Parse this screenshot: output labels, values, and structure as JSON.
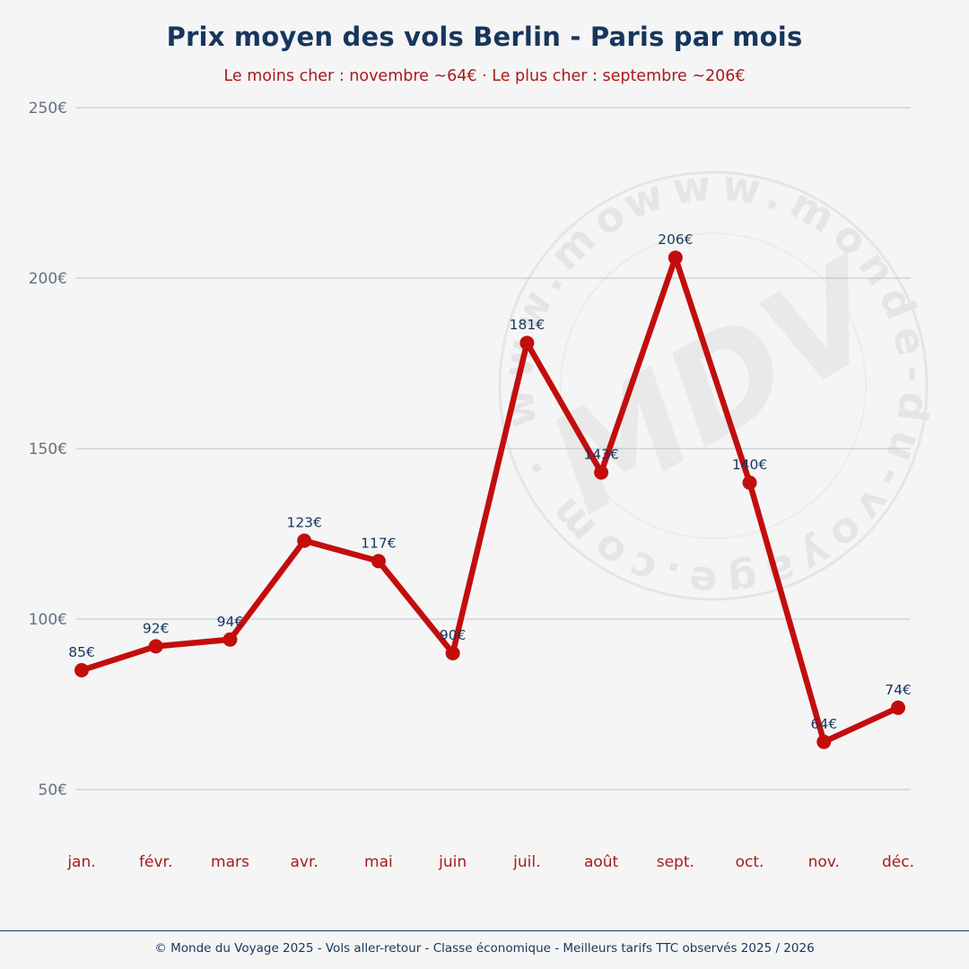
{
  "header": {
    "title": "Prix moyen des vols Berlin - Paris par mois",
    "subtitle": "Le moins cher : novembre ~64€ · Le plus cher : septembre ~206€"
  },
  "chart_data": {
    "type": "line",
    "title": "Prix moyen des vols Berlin - Paris par mois",
    "categories": [
      "jan.",
      "févr.",
      "mars",
      "avr.",
      "mai",
      "juin",
      "juil.",
      "août",
      "sept.",
      "oct.",
      "nov.",
      "déc."
    ],
    "values": [
      85,
      92,
      94,
      123,
      117,
      90,
      181,
      143,
      206,
      140,
      64,
      74
    ],
    "point_labels": [
      "85€",
      "92€",
      "94€",
      "123€",
      "117€",
      "90€",
      "181€",
      "143€",
      "206€",
      "140€",
      "64€",
      "74€"
    ],
    "ylim": [
      50,
      250
    ],
    "ytick_step": 50,
    "ytick_labels": [
      "50€",
      "100€",
      "150€",
      "200€",
      "250€"
    ],
    "grid": true,
    "legend": "none",
    "colors": {
      "line": "#c30d0d",
      "point": "#c30d0d",
      "point_label": "#17365d",
      "gridline": "#b9c3d2",
      "ytick": "#667180",
      "xtick": "#a61c1c",
      "title": "#17365d",
      "subtitle": "#ab1a1a",
      "background": "#f5f5f5",
      "watermark": "#dedede"
    }
  },
  "watermark": {
    "circle_text": "www.monde-du-voyage.com · ",
    "center_text": "MDV"
  },
  "footer": {
    "text": "© Monde du Voyage 2025 - Vols aller-retour - Classe économique - Meilleurs tarifs TTC observés 2025 / 2026"
  }
}
